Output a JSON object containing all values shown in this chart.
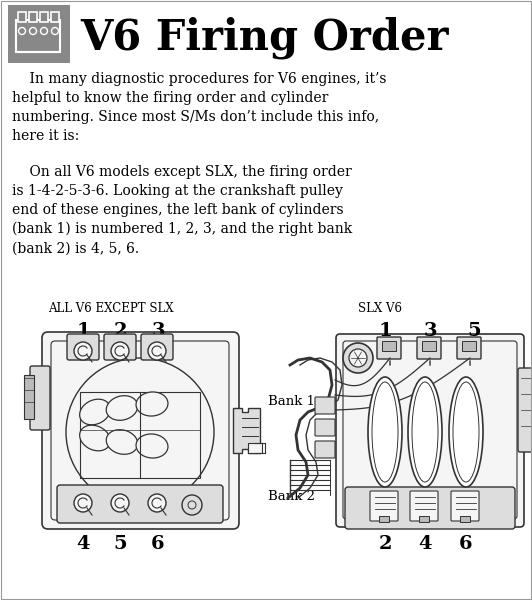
{
  "title": "V6 Firing Order",
  "bg_color": "#ffffff",
  "header_icon_bg": "#888888",
  "title_fontsize": 30,
  "body_text_1": "    In many diagnostic procedures for V6 engines, it’s\nhelpful to know the firing order and cylinder\nnumbering. Since most S/Ms don’t include this info,\nhere it is:",
  "body_text_2": "    On all V6 models except SLX, the firing order\nis 1-4-2-5-3-6. Looking at the crankshaft pulley\nend of these engines, the left bank of cylinders\n(bank 1) is numbered 1, 2, 3, and the right bank\n(bank 2) is 4, 5, 6.",
  "label_left": "ALL V6 EXCEPT SLX",
  "label_right": "SLX V6",
  "bank1_label": "Bank 1",
  "bank2_label": "Bank 2",
  "left_top_nums": [
    "1",
    "2",
    "3"
  ],
  "left_bot_nums": [
    "4",
    "5",
    "6"
  ],
  "right_top_nums": [
    "1",
    "3",
    "5"
  ],
  "right_bot_nums": [
    "2",
    "4",
    "6"
  ],
  "edge_color": "#333333",
  "fill_light": "#f5f5f5",
  "fill_mid": "#dddddd",
  "fill_dark": "#bbbbbb"
}
